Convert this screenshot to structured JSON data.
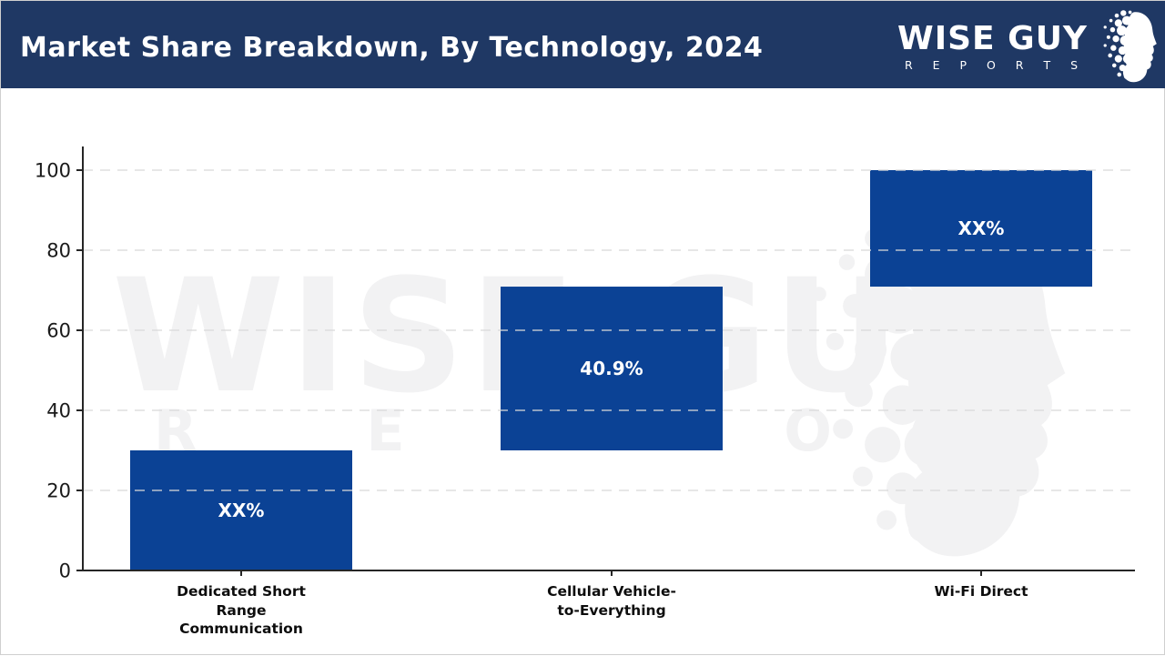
{
  "header": {
    "title": "Market Share Breakdown, By Technology, 2024",
    "background_color": "#1f3864",
    "brand": {
      "name": "WISE GUY",
      "subname": "R E P O R T S"
    }
  },
  "watermark": {
    "line1": "WISE GUY",
    "line2": "R E P O R T S"
  },
  "chart_data": {
    "type": "bar",
    "variant": "floating-waterfall",
    "title": "Market Share Breakdown, By Technology, 2024",
    "categories": [
      "Dedicated Short Range Communication",
      "Cellular Vehicle-to-Everything",
      "Wi-Fi Direct"
    ],
    "category_lines": [
      [
        "Dedicated Short",
        "Range",
        "Communication"
      ],
      [
        "Cellular Vehicle-",
        "to-Everything"
      ],
      [
        "Wi-Fi Direct"
      ]
    ],
    "bars": [
      {
        "category": "Dedicated Short Range Communication",
        "start": 0,
        "end": 30,
        "label": "XX%"
      },
      {
        "category": "Cellular Vehicle-to-Everything",
        "start": 30,
        "end": 70.9,
        "label": "40.9%"
      },
      {
        "category": "Wi-Fi Direct",
        "start": 70.9,
        "end": 100,
        "label": "XX%"
      }
    ],
    "bar_color": "#0b4295",
    "bar_label_color": "#ffffff",
    "ylim": [
      0,
      100
    ],
    "yticks": [
      0,
      20,
      40,
      60,
      80,
      100
    ],
    "xlabel": "",
    "ylabel": "",
    "grid": "horizontal-dashed",
    "grid_color": "#d9d9d9",
    "axis_color": "#262626",
    "tick_label_color": "#1a1a1a",
    "legend": "none"
  }
}
